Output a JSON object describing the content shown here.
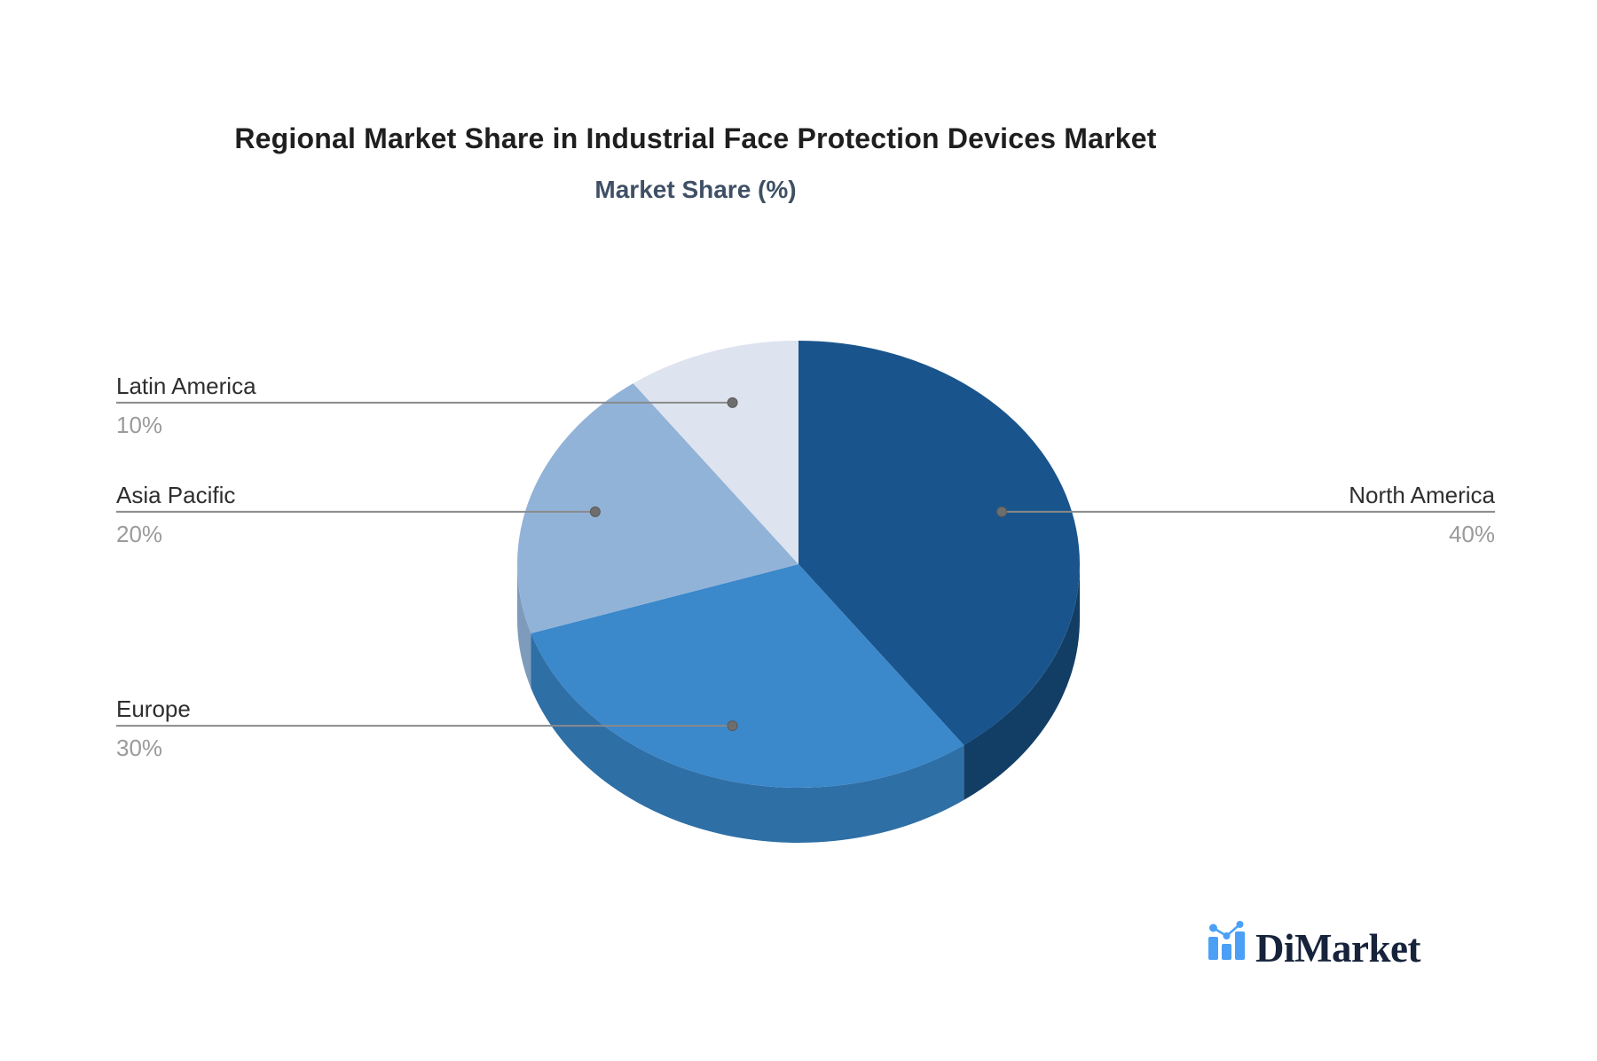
{
  "chart_data": {
    "type": "pie",
    "title": "Regional Market Share in Industrial Face Protection Devices Market",
    "subtitle": "Market Share (%)",
    "value_suffix": "%",
    "style": "3d",
    "start_angle_deg": 0,
    "direction": "clockwise",
    "slices": [
      {
        "label": "North America",
        "value": 40,
        "display_value": "40%",
        "color": "#19558C",
        "side_color": "#123E66",
        "label_side": "right"
      },
      {
        "label": "Europe",
        "value": 30,
        "display_value": "30%",
        "color": "#3B88CB",
        "side_color": "#2E6FA6",
        "label_side": "left"
      },
      {
        "label": "Asia Pacific",
        "value": 20,
        "display_value": "20%",
        "color": "#92B3D8",
        "side_color": "#7E9BBC",
        "label_side": "left"
      },
      {
        "label": "Latin America",
        "value": 10,
        "display_value": "10%",
        "color": "#DDE3EF",
        "side_color": "#C9D1E0",
        "label_side": "left"
      }
    ],
    "label_text_color": "#2e2e2e",
    "label_value_color": "#9b9b9b",
    "connector_color": "#8a8a8a",
    "legend_position": "connector-labels"
  },
  "branding": {
    "logo_text": "DiMarket",
    "logo_icon": "bar-line-chart-icon",
    "logo_icon_color": "#4BA0F6",
    "logo_text_color": "#16233B"
  }
}
